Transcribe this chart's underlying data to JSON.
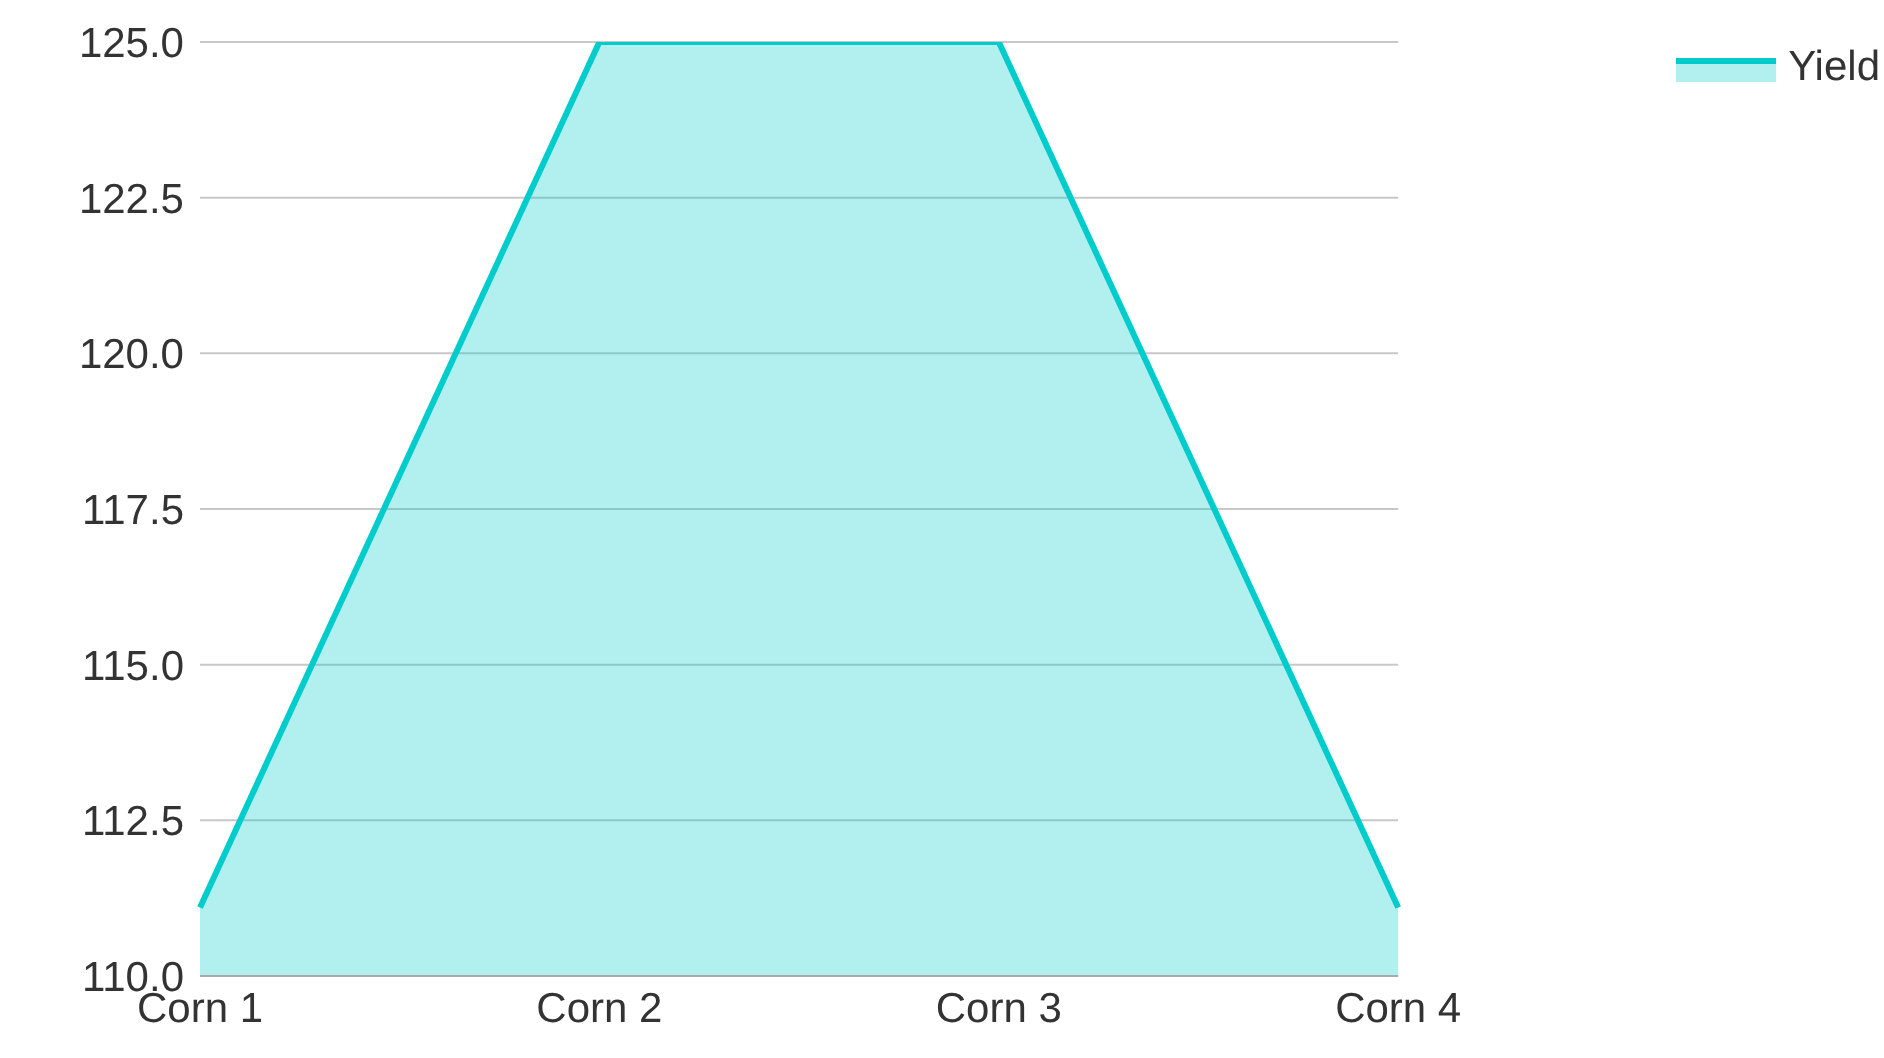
{
  "chart_data": {
    "type": "area",
    "categories": [
      "Corn 1",
      "Corn 2",
      "Corn 3",
      "Corn 4"
    ],
    "series": [
      {
        "name": "Yield",
        "color": "#00cccc",
        "values": [
          111.1,
          125,
          125,
          111.1
        ]
      }
    ],
    "ylim": [
      110,
      125
    ],
    "yticks": [
      {
        "value": 110,
        "label": "110.0"
      },
      {
        "value": 112.5,
        "label": "112.5"
      },
      {
        "value": 115,
        "label": "115.0"
      },
      {
        "value": 117.5,
        "label": "117.5"
      },
      {
        "value": 120,
        "label": "120.0"
      },
      {
        "value": 122.5,
        "label": "122.5"
      },
      {
        "value": 125,
        "label": "125.0"
      }
    ],
    "grid": "y",
    "legend": "top right"
  }
}
